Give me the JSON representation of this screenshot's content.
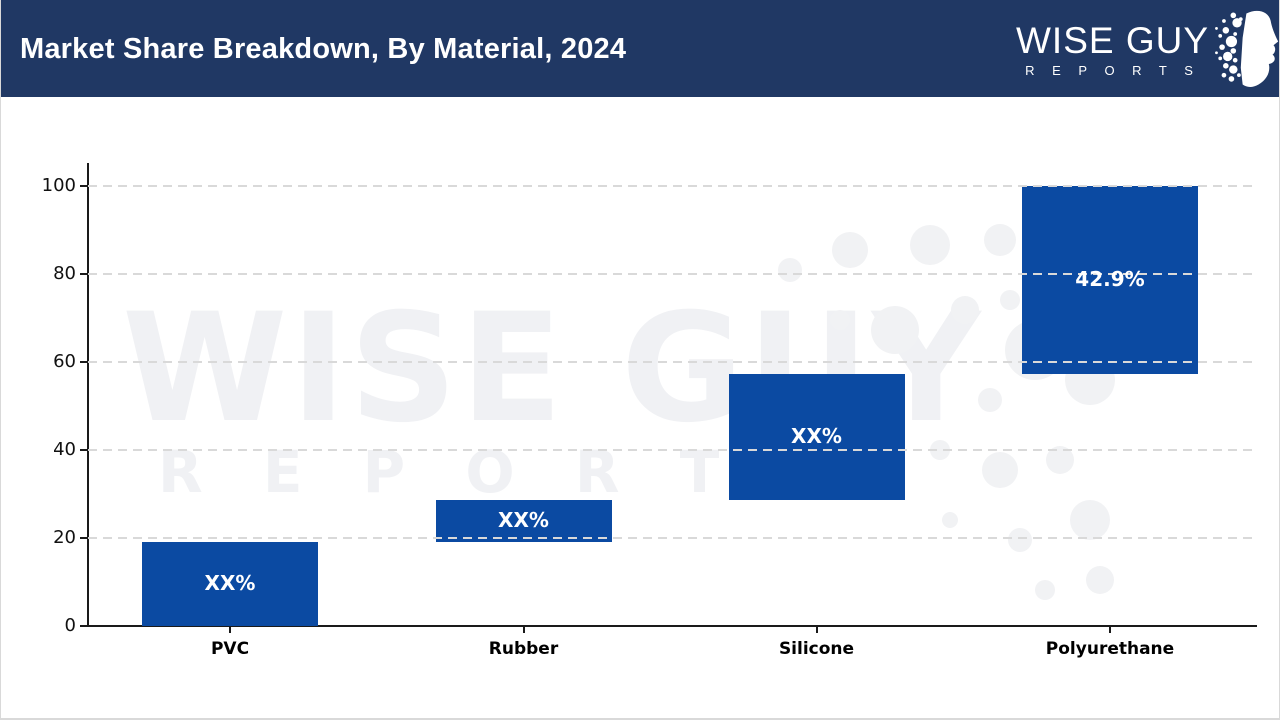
{
  "header": {
    "title": "Market Share Breakdown, By Material, 2024",
    "logo": {
      "line1": "WISE GUY",
      "line2": "R E P O R T S"
    }
  },
  "watermark": {
    "line1": "WISE GUY",
    "line2": "R E P O R T S"
  },
  "chart_data": {
    "type": "bar",
    "subtype": "waterfall-floating-bars",
    "title": "Market Share Breakdown, By Material, 2024",
    "categories": [
      "PVC",
      "Rubber",
      "Silicone",
      "Polyurethane"
    ],
    "segments": [
      {
        "category": "PVC",
        "label": "XX%",
        "start": 0,
        "end": 19.0
      },
      {
        "category": "Rubber",
        "label": "XX%",
        "start": 19.0,
        "end": 28.6
      },
      {
        "category": "Silicone",
        "label": "XX%",
        "start": 28.6,
        "end": 57.1
      },
      {
        "category": "Polyurethane",
        "label": "42.9%",
        "start": 57.1,
        "end": 100
      }
    ],
    "values_pct": [
      19.0,
      9.6,
      28.5,
      42.9
    ],
    "yticks": [
      0,
      20,
      40,
      60,
      80,
      100
    ],
    "ylim": [
      0,
      105
    ],
    "xlabel": "",
    "ylabel": "",
    "grid": "horizontal-dashed-over-bars",
    "legend": "none",
    "bar_color": "#0b4aa2",
    "bar_label_color": "#ffffff"
  },
  "colors": {
    "header_bg": "#203864",
    "bar": "#0b4aa2",
    "axis": "#1a1a1a",
    "gridline": "#d9d9d9",
    "watermark": "#f0f1f4"
  }
}
